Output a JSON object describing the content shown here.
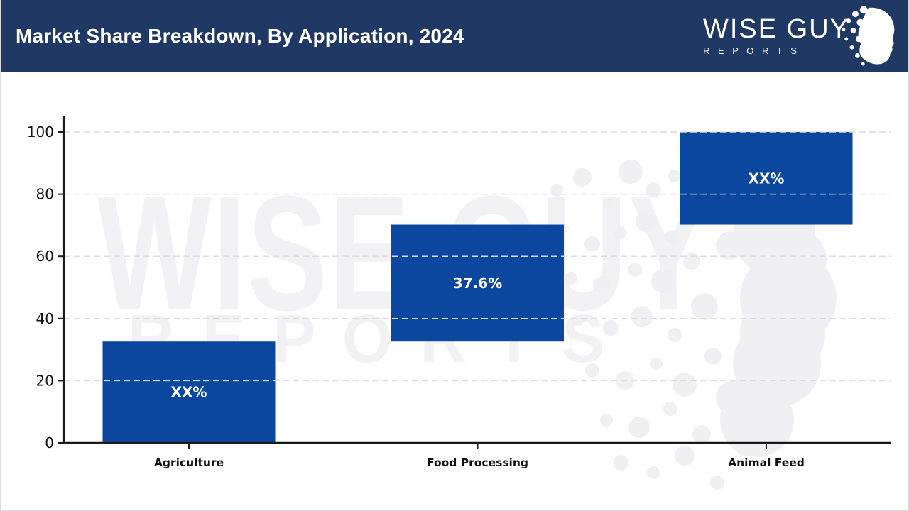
{
  "header": {
    "title": "Market Share Breakdown, By Application, 2024",
    "logo": {
      "wordmark": "WISE GUY",
      "subtitle": "R E P O R T S"
    }
  },
  "watermark": {
    "line1": "WISE GUY",
    "line2": "R E P O R T S"
  },
  "colors": {
    "header_bg": "#1f3864",
    "bar_blue": "#0b479e",
    "grid_line": "#dcdcdc",
    "axis_line": "#1a1a1a",
    "tick_label": "#111111",
    "bar_label": "#ffffff",
    "watermark_gray": "#f0f0f3"
  },
  "chart_data": {
    "type": "bar",
    "subtype": "waterfall",
    "title": "Market Share Breakdown, By Application, 2024",
    "categories": [
      "Agriculture",
      "Food Processing",
      "Animal Feed"
    ],
    "segments": [
      {
        "category": "Agriculture",
        "start": 0,
        "end": 32.6,
        "label": "XX%"
      },
      {
        "category": "Food Processing",
        "start": 32.6,
        "end": 70.2,
        "label": "37.6%"
      },
      {
        "category": "Animal Feed",
        "start": 70.2,
        "end": 100,
        "label": "XX%"
      }
    ],
    "ylim": [
      0,
      100
    ],
    "yticks": [
      0,
      20,
      40,
      60,
      80,
      100
    ],
    "grid": "horizontal-dashed",
    "legend": "none",
    "bar_color": "#0b479e"
  }
}
